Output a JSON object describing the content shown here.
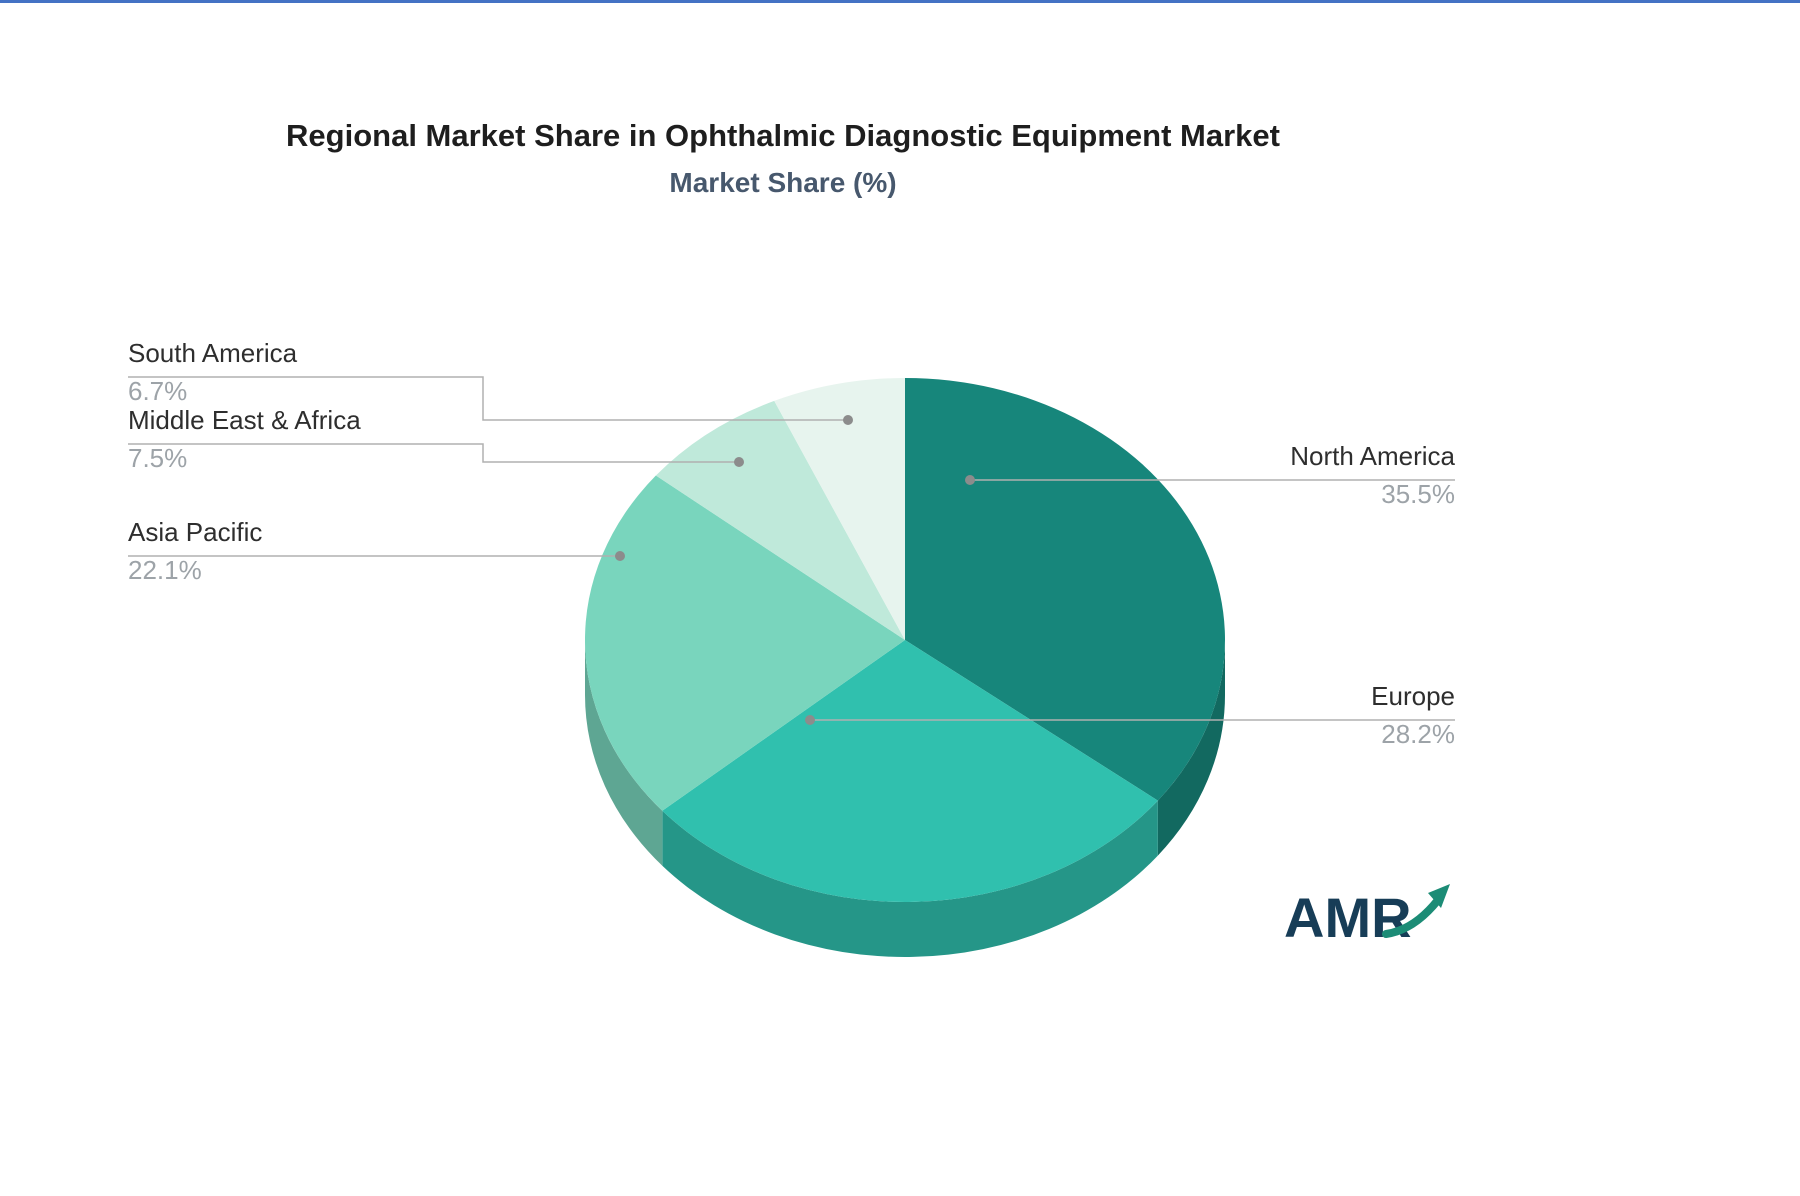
{
  "page": {
    "top_border_color": "#4472c4",
    "background_color": "#ffffff"
  },
  "logo": {
    "text": "AMR",
    "text_color": "#173d57",
    "arrow_color": "#1c8c76"
  },
  "chart_data": {
    "type": "pie",
    "style": "3d",
    "title": "Regional Market Share in Ophthalmic Diagnostic Equipment Market",
    "subtitle": "Market Share (%)",
    "unit": "%",
    "start_angle_deg": -90,
    "direction": "clockwise",
    "legend_position": "none",
    "labels": "leader-lines",
    "label_name_color": "#2e2e2e",
    "label_value_color": "#9da3a8",
    "leader_line_color": "#b0b0b0",
    "slices": [
      {
        "label": "North America",
        "value": 35.5,
        "display": "35.5%",
        "color": "#17867b"
      },
      {
        "label": "Europe",
        "value": 28.2,
        "display": "28.2%",
        "color": "#30c0ae"
      },
      {
        "label": "Asia Pacific",
        "value": 22.1,
        "display": "22.1%",
        "color": "#79d5bd"
      },
      {
        "label": "Middle East & Africa",
        "value": 7.5,
        "display": "7.5%",
        "color": "#bfe9da"
      },
      {
        "label": "South America",
        "value": 6.7,
        "display": "6.7%",
        "color": "#e7f4ee"
      }
    ]
  }
}
